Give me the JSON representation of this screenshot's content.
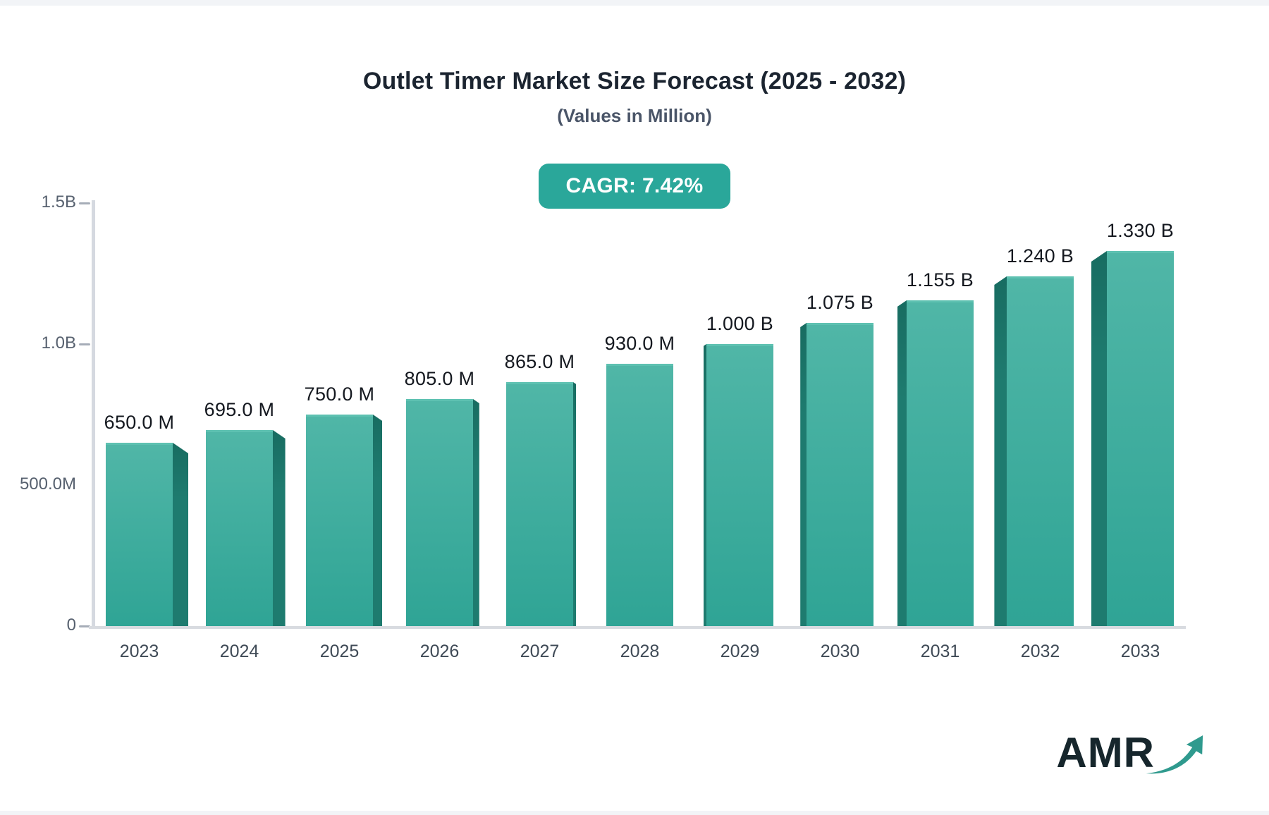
{
  "page": {
    "background": "#f2f4f7",
    "card_background": "#ffffff"
  },
  "header": {
    "title": "Outlet Timer Market Size Forecast (2025 - 2032)",
    "subtitle": "(Values in Million)",
    "cagr_badge": "CAGR: 7.42%",
    "cagr_badge_color": "#2aa79a"
  },
  "chart_data": {
    "type": "bar",
    "title": "Outlet Timer Market Size Forecast (2025 - 2032)",
    "subtitle": "(Values in Million)",
    "annotation": "CAGR: 7.42%",
    "categories": [
      "2023",
      "2024",
      "2025",
      "2026",
      "2027",
      "2028",
      "2029",
      "2030",
      "2031",
      "2032",
      "2033"
    ],
    "values_millions": [
      650,
      695,
      750,
      805,
      865,
      930,
      1000,
      1075,
      1155,
      1240,
      1330
    ],
    "bar_labels": [
      "650.0 M",
      "695.0 M",
      "750.0 M",
      "805.0 M",
      "865.0 M",
      "930.0 M",
      "1.000 B",
      "1.075 B",
      "1.155 B",
      "1.240 B",
      "1.330 B"
    ],
    "xlabel": "",
    "ylabel": "",
    "ylim_millions": [
      0,
      1500
    ],
    "y_ticks": [
      {
        "value_millions": 1500,
        "label": "1.5B",
        "dash": true
      },
      {
        "value_millions": 1000,
        "label": "1.0B",
        "dash": true
      },
      {
        "value_millions": 500,
        "label": "500.0M",
        "dash": false
      },
      {
        "value_millions": 0,
        "label": "0",
        "dash": true
      }
    ],
    "grid": false,
    "legend": null,
    "style": {
      "bar_front_top": "#50b6a7",
      "bar_front_bottom": "#2fa495",
      "bar_top_edge": "#5ec1b1",
      "bar_side_dark": "#1e7b6f",
      "bar_side_darker": "#186c61",
      "axis_line": "#d5d9e0"
    }
  },
  "logo": {
    "text": "AMR",
    "arrow_icon": "trend-up-arrow",
    "text_color": "#16262c",
    "arrow_color": "#2f9a8e"
  }
}
